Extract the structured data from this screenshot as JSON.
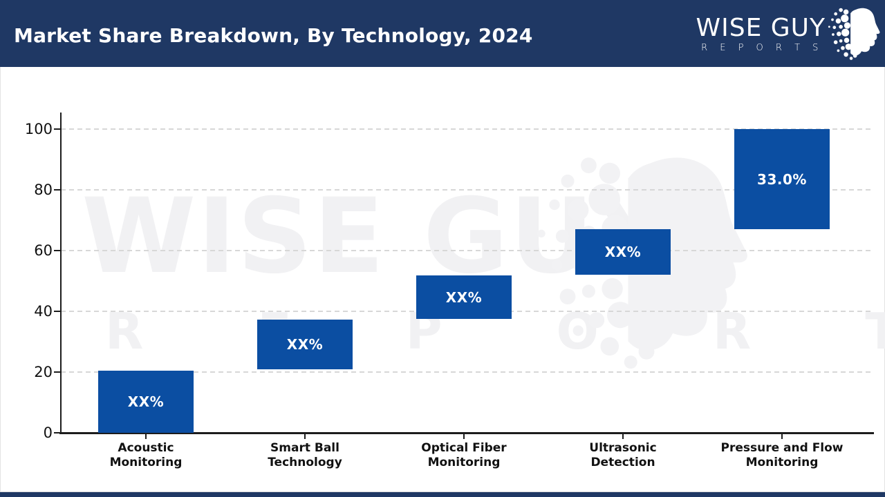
{
  "header": {
    "title": "Market Share Breakdown, By Technology, 2024",
    "logo": {
      "line1": "WISE GUY",
      "line2": "R E P O R T S"
    }
  },
  "watermark": {
    "line1": "WISE GUY",
    "line2": "R E P O R T S"
  },
  "colors": {
    "header_bg": "#1f3864",
    "bar": "#0b4ea2",
    "grid": "#d7d7d7",
    "axis": "#1c1c1c",
    "watermark": "#f1f1f3",
    "footer_bg": "#1f3864"
  },
  "chart_data": {
    "type": "bar",
    "subtype": "floating-waterfall",
    "title": "Market Share Breakdown, By Technology, 2024",
    "xlabel": "",
    "ylabel": "",
    "ylim": [
      0,
      100
    ],
    "yticks": [
      0,
      20,
      40,
      60,
      80,
      100
    ],
    "grid": "horizontal-dashed",
    "legend": "none",
    "categories": [
      "Acoustic Monitoring",
      "Smart Ball Technology",
      "Optical Fiber Monitoring",
      "Ultrasonic Detection",
      "Pressure and Flow Monitoring"
    ],
    "bars": [
      {
        "category": "Acoustic Monitoring",
        "start": 0,
        "end": 20.5,
        "label": "XX%"
      },
      {
        "category": "Smart Ball Technology",
        "start": 21,
        "end": 37.3,
        "label": "XX%"
      },
      {
        "category": "Optical Fiber Monitoring",
        "start": 37.5,
        "end": 51.8,
        "label": "XX%"
      },
      {
        "category": "Ultrasonic Detection",
        "start": 52,
        "end": 67,
        "label": "XX%"
      },
      {
        "category": "Pressure and Flow Monitoring",
        "start": 67,
        "end": 100,
        "label": "33.0%"
      }
    ]
  }
}
